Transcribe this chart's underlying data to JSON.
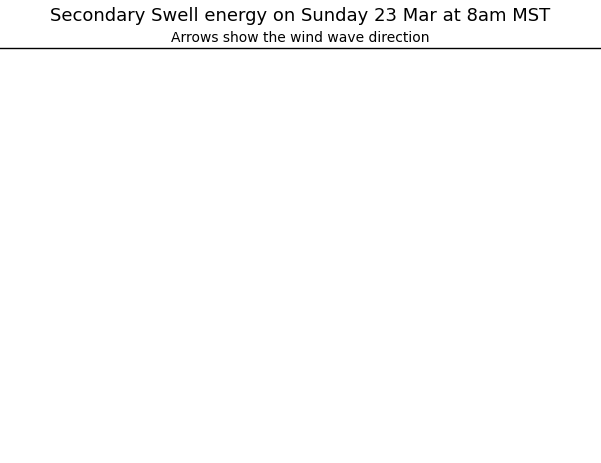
{
  "title": "Secondary Swell energy on Sunday 23 Mar at 8am MST",
  "subtitle": "Arrows show the wind wave direction",
  "title_fontsize": 13,
  "subtitle_fontsize": 10,
  "bg_color": "#000000",
  "land_color_light": "#aaaaaa",
  "land_color_dark": "#888888",
  "header_bg": "#ffffff",
  "border_color": "#000000",
  "fig_width": 6.01,
  "fig_height": 4.64,
  "dpi": 100
}
